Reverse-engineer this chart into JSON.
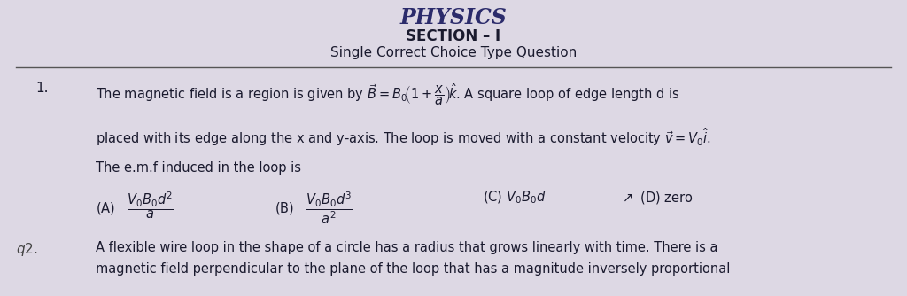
{
  "background_color": "#ddd8e4",
  "title": "PHYSICS",
  "section_title": "SECTION – I",
  "section_subtitle": "Single Correct Choice Type Question",
  "q1_number": "1.",
  "q2_handwritten": "q2.",
  "q1_line1": "The magnetic field is a region is given by $\\vec{B}=B_0\\!\\left(1+\\dfrac{x}{a}\\right)\\!\\hat{k}$. A square loop of edge length d is",
  "q1_line2": "placed with its edge along the x and y-axis. The loop is moved with a constant velocity $\\vec{v}=V_0\\hat{i}$.",
  "q1_line3": "The e.m.f induced in the loop is",
  "opt_A": "(A)   $\\dfrac{V_0B_0d^2}{a}$",
  "opt_B": "(B)   $\\dfrac{V_0B_0d^3}{a^2}$",
  "opt_C": "(C) $V_0B_0d$",
  "opt_D": "(D) zero",
  "q2_line1": "A flexible wire loop in the shape of a circle has a radius that grows linearly with time. There is a",
  "q2_line2": "magnetic field perpendicular to the plane of the loop that has a magnitude inversely proportional",
  "text_color": "#1a1a2e",
  "title_color": "#2b2b6b",
  "line_color": "#555555",
  "q2_color": "#444444"
}
